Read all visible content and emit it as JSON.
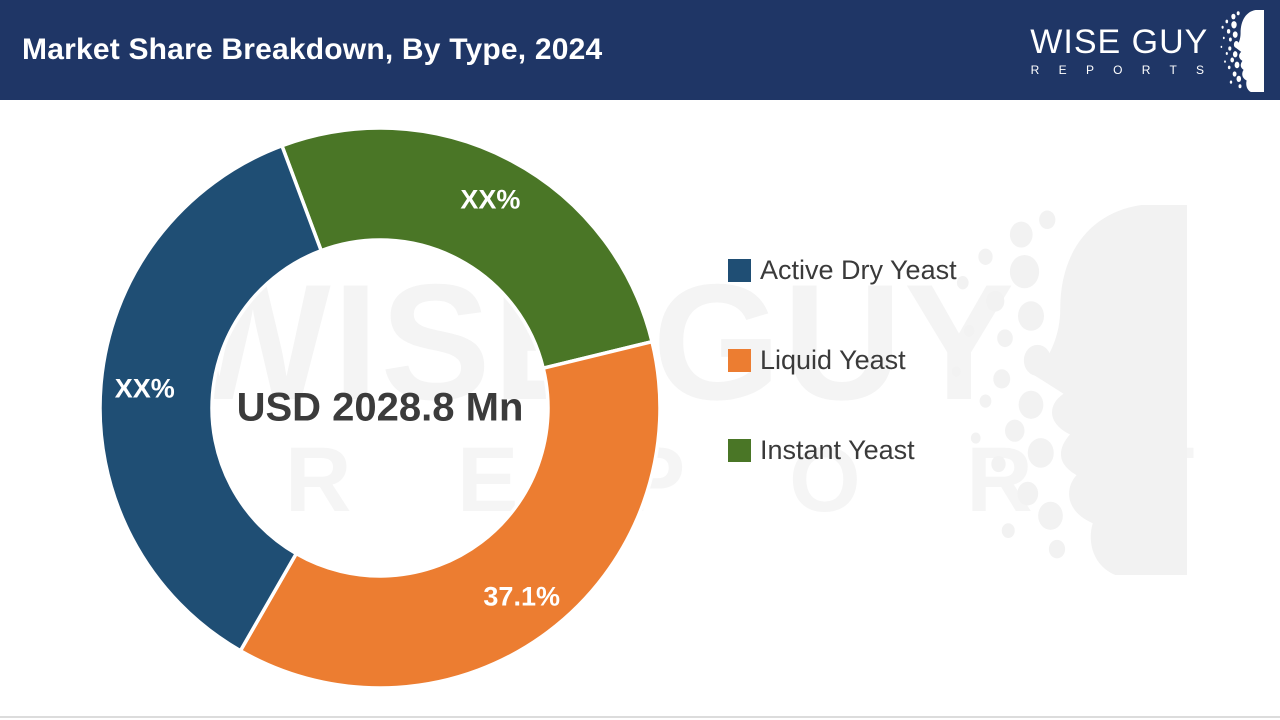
{
  "header": {
    "title": "Market Share Breakdown, By Type, 2024",
    "bg_color": "#1F3666",
    "logo": {
      "line1": "WISE GUY",
      "line2": "R E P O R T S"
    }
  },
  "watermark": {
    "line1": "WISE GUY",
    "line2": "R E P O R T S"
  },
  "chart_data": {
    "type": "pie",
    "subtype": "donut",
    "title": "Market Share Breakdown, By Type, 2024",
    "center_label": "USD 2028.8 Mn",
    "legend_position": "right",
    "start_angle_deg": 110.5,
    "draw_order": [
      2,
      1,
      0
    ],
    "segments": [
      {
        "name": "Active Dry Yeast",
        "display_value": "XX%",
        "share_est_pct": 36.0,
        "arc_deg": 129.6,
        "color": "#1F4E74"
      },
      {
        "name": "Liquid Yeast",
        "display_value": "37.1%",
        "share_est_pct": 37.1,
        "arc_deg": 133.6,
        "color": "#EC7D31"
      },
      {
        "name": "Instant Yeast",
        "display_value": "XX%",
        "share_est_pct": 26.9,
        "arc_deg": 96.8,
        "color": "#4A7626"
      }
    ]
  }
}
